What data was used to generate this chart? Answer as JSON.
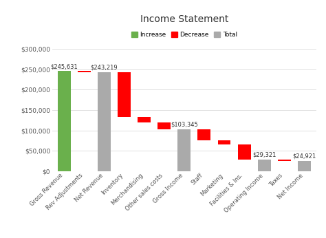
{
  "title": "Income Statement",
  "categories": [
    "Gross Revenue",
    "Rev Adjustments",
    "Net Revenue",
    "Inventory",
    "Merchandising",
    "Other sales costs",
    "Gross Income",
    "Staff",
    "Marketing",
    "Facilities & Ins.",
    "Operating Income",
    "Taxes",
    "Net Income"
  ],
  "bar_type": [
    "increase",
    "decrease",
    "total",
    "decrease",
    "decrease",
    "decrease",
    "total",
    "decrease",
    "decrease",
    "decrease",
    "total",
    "decrease",
    "total"
  ],
  "values": [
    245631,
    2412,
    243219,
    109874,
    13000,
    16875,
    103345,
    27000,
    11000,
    36024,
    29321,
    4400,
    24921
  ],
  "labels": [
    "$245,631",
    "",
    "$243,219",
    "",
    "",
    "",
    "$103,345",
    "",
    "",
    "",
    "$29,321",
    "",
    "$24,921"
  ],
  "color_increase": "#6ab04c",
  "color_decrease": "#ff0000",
  "color_total": "#aaaaaa",
  "bg_color": "#ffffff",
  "grid_color": "#e0e0e0",
  "ylim": [
    0,
    315000
  ],
  "yticks": [
    0,
    50000,
    100000,
    150000,
    200000,
    250000,
    300000
  ],
  "legend_labels": [
    "Increase",
    "Decrease",
    "Total"
  ],
  "figsize": [
    4.74,
    3.46
  ],
  "dpi": 100
}
